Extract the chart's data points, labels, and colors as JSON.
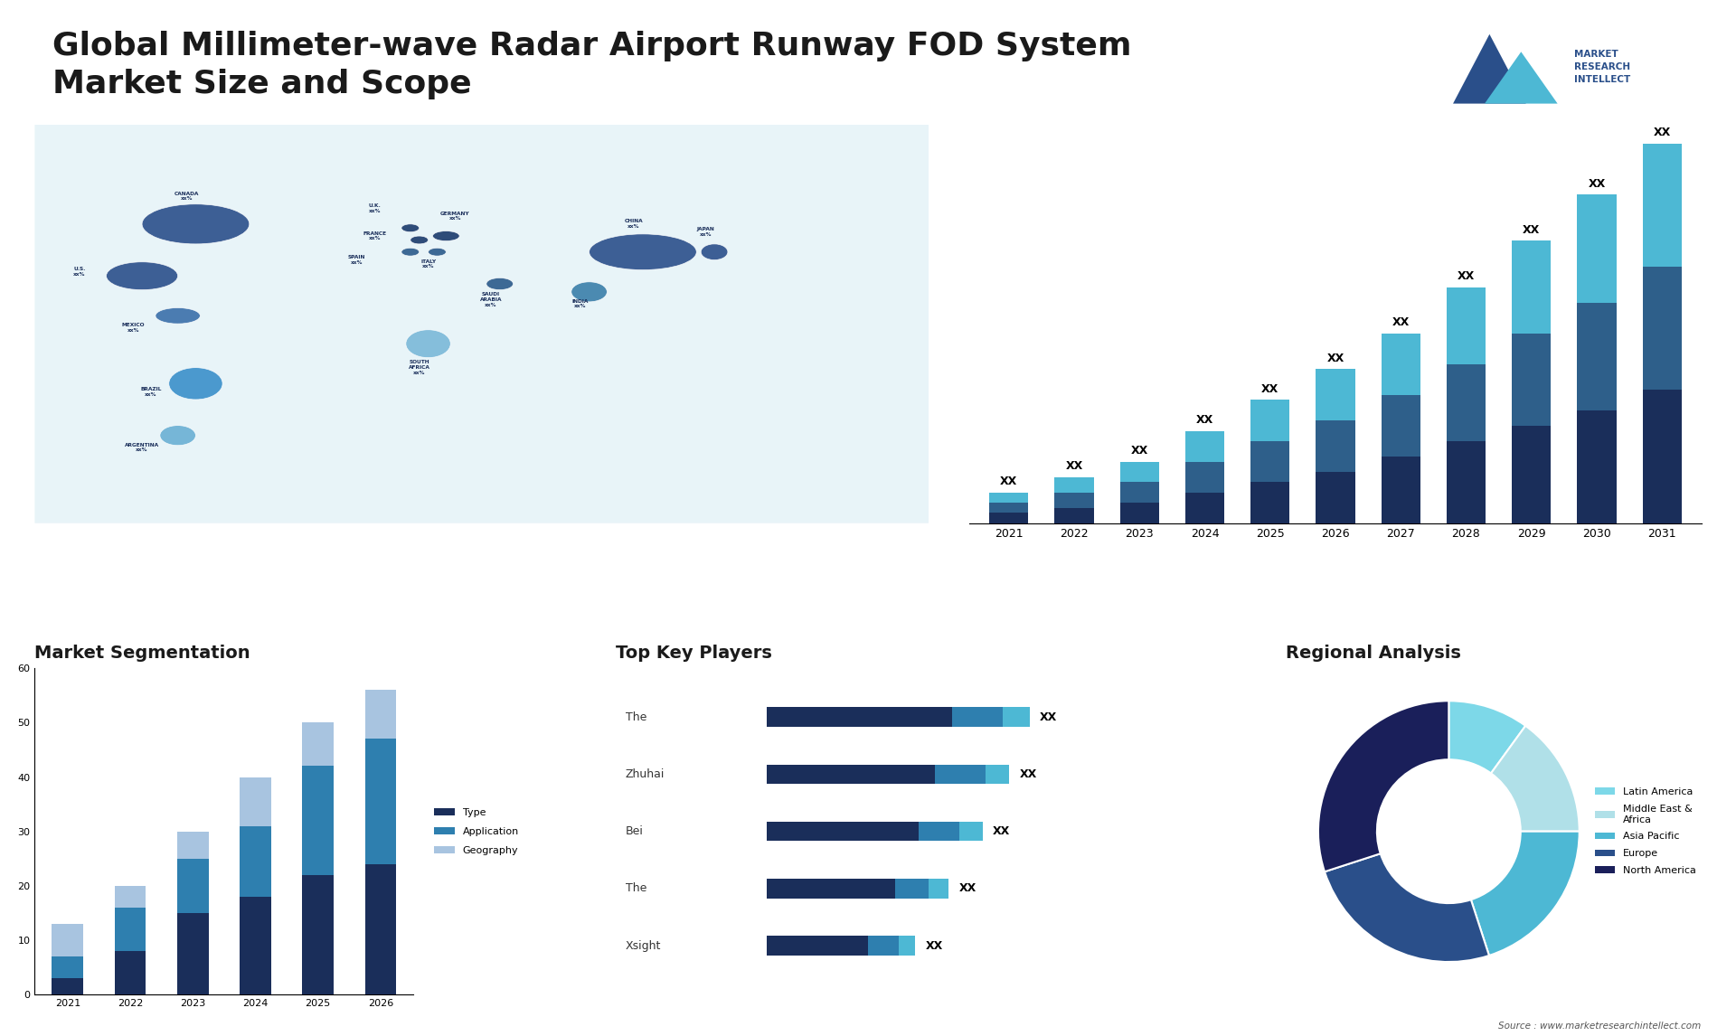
{
  "title_line1": "Global Millimeter-wave Radar Airport Runway FOD System",
  "title_line2": "Market Size and Scope",
  "title_fontsize": 26,
  "title_color": "#1a1a1a",
  "background_color": "#ffffff",
  "bar_years": [
    2021,
    2022,
    2023,
    2024,
    2025,
    2026,
    2027,
    2028,
    2029,
    2030,
    2031
  ],
  "bar_seg1": [
    1,
    1.5,
    2,
    3,
    4,
    5,
    6.5,
    8,
    9.5,
    11,
    13
  ],
  "bar_seg2": [
    1,
    1.5,
    2,
    3,
    4,
    5,
    6,
    7.5,
    9,
    10.5,
    12
  ],
  "bar_seg3": [
    1,
    1.5,
    2,
    3,
    4,
    5,
    6,
    7.5,
    9,
    10.5,
    12
  ],
  "bar_color1": "#1a2e5a",
  "bar_color2": "#2e5f8a",
  "bar_color3": "#4db8d4",
  "arrow_color": "#1a3a6b",
  "seg_title": "Market Segmentation",
  "seg_years": [
    2021,
    2022,
    2023,
    2024,
    2025,
    2026
  ],
  "seg_type": [
    3,
    8,
    15,
    18,
    22,
    24
  ],
  "seg_app": [
    4,
    8,
    10,
    13,
    20,
    23
  ],
  "seg_geo": [
    6,
    4,
    5,
    9,
    8,
    9
  ],
  "seg_color_type": "#1a2e5a",
  "seg_color_app": "#2e7faf",
  "seg_color_geo": "#a8c4e0",
  "seg_ylim": [
    0,
    60
  ],
  "seg_yticks": [
    0,
    10,
    20,
    30,
    40,
    50,
    60
  ],
  "seg_legend": [
    "Type",
    "Application",
    "Geography"
  ],
  "players_title": "Top Key Players",
  "players": [
    "The",
    "Zhuhai",
    "Bei",
    "The",
    "Xsight"
  ],
  "players_val1": [
    55,
    50,
    45,
    38,
    30
  ],
  "players_val2": [
    15,
    15,
    12,
    10,
    9
  ],
  "players_val3": [
    8,
    7,
    7,
    6,
    5
  ],
  "players_color1": "#1a2e5a",
  "players_color2": "#2e7faf",
  "players_color3": "#4db8d4",
  "regional_title": "Regional Analysis",
  "pie_values": [
    10,
    15,
    20,
    25,
    30
  ],
  "pie_labels": [
    "Latin America",
    "Middle East &\nAfrica",
    "Asia Pacific",
    "Europe",
    "North America"
  ],
  "pie_colors": [
    "#7dd8e8",
    "#b0e0e8",
    "#4db8d4",
    "#2a4f8a",
    "#1a1f5a"
  ],
  "source_text": "Source : www.marketresearchintellect.com"
}
